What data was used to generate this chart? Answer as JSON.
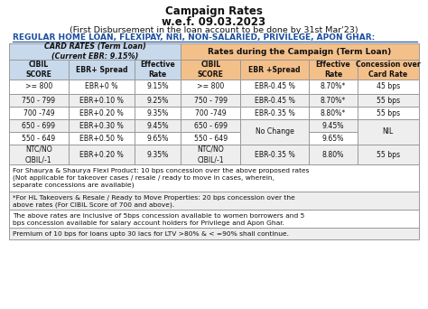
{
  "title_line1": "Campaign Rates",
  "title_line2": "w.e.f. 09.03.2023",
  "title_line3": "(First Disbursement in the loan account to be done by 31st Mar'23)",
  "subtitle": "REGULAR HOME LOAN, FLEXIPAY, NRI, NON-SALARIED, PRIVILEGE, APON GHAR:",
  "table_data": [
    [
      ">= 800",
      "EBR+0 %",
      "9.15%",
      ">= 800",
      "EBR-0.45 %",
      "8.70%*",
      "45 bps"
    ],
    [
      "750 - 799",
      "EBR+0.10 %",
      "9.25%",
      "750 - 799",
      "EBR-0.45 %",
      "8.70%*",
      "55 bps"
    ],
    [
      "700 -749",
      "EBR+0.20 %",
      "9.35%",
      "700 -749",
      "EBR-0.35 %",
      "8.80%*",
      "55 bps"
    ],
    [
      "650 - 699",
      "EBR+0.30 %",
      "9.45%",
      "650 - 699",
      "No Change",
      "9.45%",
      "NIL"
    ],
    [
      "550 - 649",
      "EBR+0.50 %",
      "9.65%",
      "550 - 649",
      "No Change",
      "9.65%",
      "NIL"
    ],
    [
      "NTC/NO\nCIBIL/-1",
      "EBR+0.20 %",
      "9.35%",
      "NTC/NO\nCIBIL/-1",
      "EBR-0.35 %",
      "8.80%",
      "55 bps"
    ]
  ],
  "footnotes": [
    [
      "bold",
      "For Shaurya & Shaurya Flexi Product: 10 bps",
      "normal",
      " concession over the above proposed rates (Not applicable for takeover cases / resale / ready to move in cases, wherein, separate concessions are available)"
    ],
    [
      "bold",
      "*For HL Takeovers & Resale / Ready to Move Properties:",
      "normal",
      " 20 bps concession over the above rates (For CIBIL Score of 700 and above)."
    ],
    [
      "normal",
      "The above rates are ",
      "bold",
      "inclusive",
      "normal",
      " of 5bps concession available to women borrowers and 5 bps concession available for salary account holders for Privilege and Apon Ghar."
    ],
    [
      "normal",
      "Premium of 10 bps for loans upto 30 lacs for LTV >80% & < =90% shall continue."
    ]
  ],
  "bg_color": "#ffffff",
  "header_left_bg": "#c8d9eb",
  "header_right_bg": "#f4c08a",
  "row_bg_alt": "#eeeeee",
  "row_bg_white": "#ffffff",
  "subtitle_color": "#1a4fa0",
  "border_color": "#999999",
  "text_color": "#111111"
}
